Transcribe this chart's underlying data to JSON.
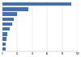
{
  "values": [
    92,
    35,
    20,
    15,
    13,
    10,
    7,
    6,
    5,
    4
  ],
  "bar_color": "#4472a8",
  "background_color": "#ffffff",
  "grid_color": "#d0d0d0",
  "bar_height": 0.72,
  "xlim": [
    0,
    100
  ]
}
